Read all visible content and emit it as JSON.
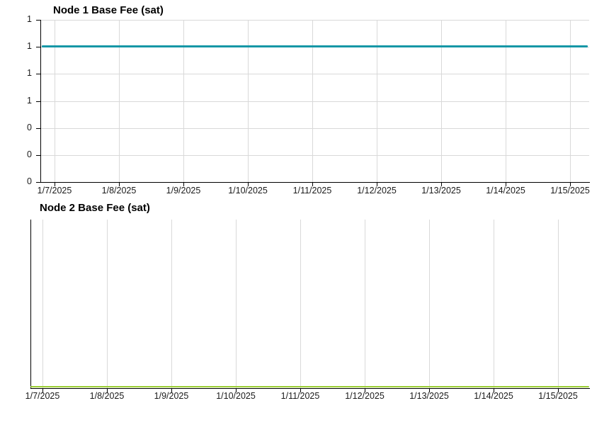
{
  "page": {
    "background": "#FFFFFF"
  },
  "colors": {
    "gridline": "#D9D9D9",
    "axis": "#000000",
    "label_text": "#1A1A1A",
    "node1_line": "#1597A6",
    "node2_line": "#9ACD32"
  },
  "chart_data": [
    {
      "type": "line",
      "title": "Node 1 Base Fee (sat)",
      "categories": [
        "1/7/2025",
        "1/8/2025",
        "1/9/2025",
        "1/10/2025",
        "1/11/2025",
        "1/12/2025",
        "1/13/2025",
        "1/14/2025",
        "1/15/2025"
      ],
      "series": [
        {
          "name": "Node 1 Base Fee",
          "values": [
            1,
            1,
            1,
            1,
            1,
            1,
            1,
            1,
            1
          ]
        }
      ],
      "xlabel": "",
      "ylabel": "",
      "ylim": [
        0,
        1.2
      ],
      "y_tick_labels_top_to_bottom": [
        "1",
        "1",
        "1",
        "1",
        "0",
        "0",
        "0"
      ],
      "grid_horizontal": true,
      "grid_vertical": true,
      "legend": "none",
      "line_color": "#1597A6",
      "description": "flat line at value 1 across all dates"
    },
    {
      "type": "line",
      "title": "Node 2 Base Fee (sat)",
      "categories": [
        "1/7/2025",
        "1/8/2025",
        "1/9/2025",
        "1/10/2025",
        "1/11/2025",
        "1/12/2025",
        "1/13/2025",
        "1/14/2025",
        "1/15/2025"
      ],
      "series": [
        {
          "name": "Node 2 Base Fee",
          "values": [
            0,
            0,
            0,
            0,
            0,
            0,
            0,
            0,
            0
          ]
        }
      ],
      "xlabel": "",
      "ylabel": "",
      "ylim": [
        0,
        1
      ],
      "y_tick_labels_top_to_bottom": [],
      "grid_horizontal": false,
      "grid_vertical": true,
      "legend": "none",
      "line_color": "#9ACD32",
      "description": "flat line at bottom of plot area (value 0) across all dates"
    }
  ]
}
